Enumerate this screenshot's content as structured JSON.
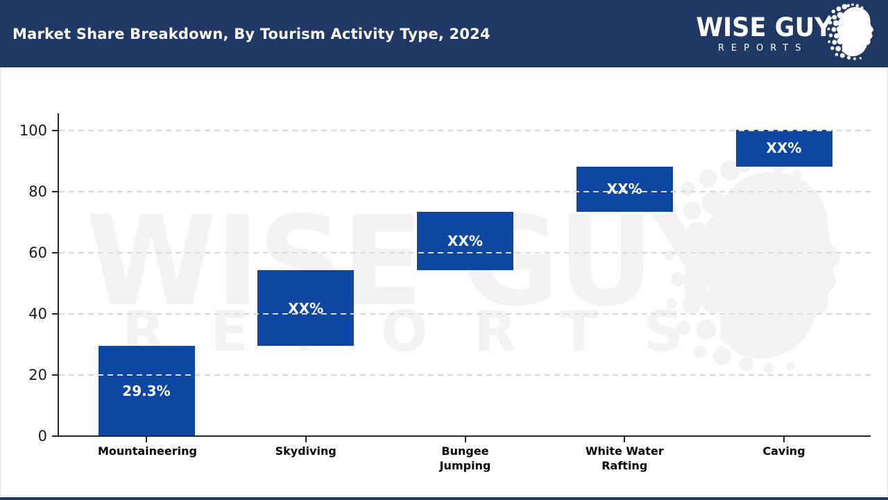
{
  "header": {
    "title": "Market Share Breakdown, By Tourism Activity Type, 2024",
    "logo": {
      "primary": "WISE GUY",
      "secondary": "REPORTS"
    }
  },
  "watermark": {
    "primary": "WISE GUY",
    "secondary": "REPORTS"
  },
  "chart_data": {
    "type": "bar",
    "subtype": "floating-waterfall",
    "title": "Market Share Breakdown, By Tourism Activity Type, 2024",
    "categories": [
      "Mountaineering",
      "Skydiving",
      "Bungee Jumping",
      "White Water Rafting",
      "Caving"
    ],
    "segments": [
      {
        "start": 0,
        "end": 29.3,
        "label": "29.3%"
      },
      {
        "start": 29.3,
        "end": 54,
        "label": "XX%"
      },
      {
        "start": 54,
        "end": 73.2,
        "label": "XX%"
      },
      {
        "start": 73.2,
        "end": 88,
        "label": "XX%"
      },
      {
        "start": 88,
        "end": 100,
        "label": "XX%"
      }
    ],
    "ylim": [
      0,
      100
    ],
    "yticks": [
      0,
      20,
      40,
      60,
      80,
      100
    ],
    "grid": "horizontal-dashed",
    "legend": "none",
    "bar_color": "#0d47a1",
    "xlabel": "",
    "ylabel": ""
  },
  "colors": {
    "header_bg": "#1f3864",
    "bar": "#0d47a1",
    "grid": "#d9d9d9",
    "axis": "#262626",
    "tick_label": "#1a1a1a",
    "bar_label": "#ffffff",
    "watermark": "#f2f2f4"
  }
}
